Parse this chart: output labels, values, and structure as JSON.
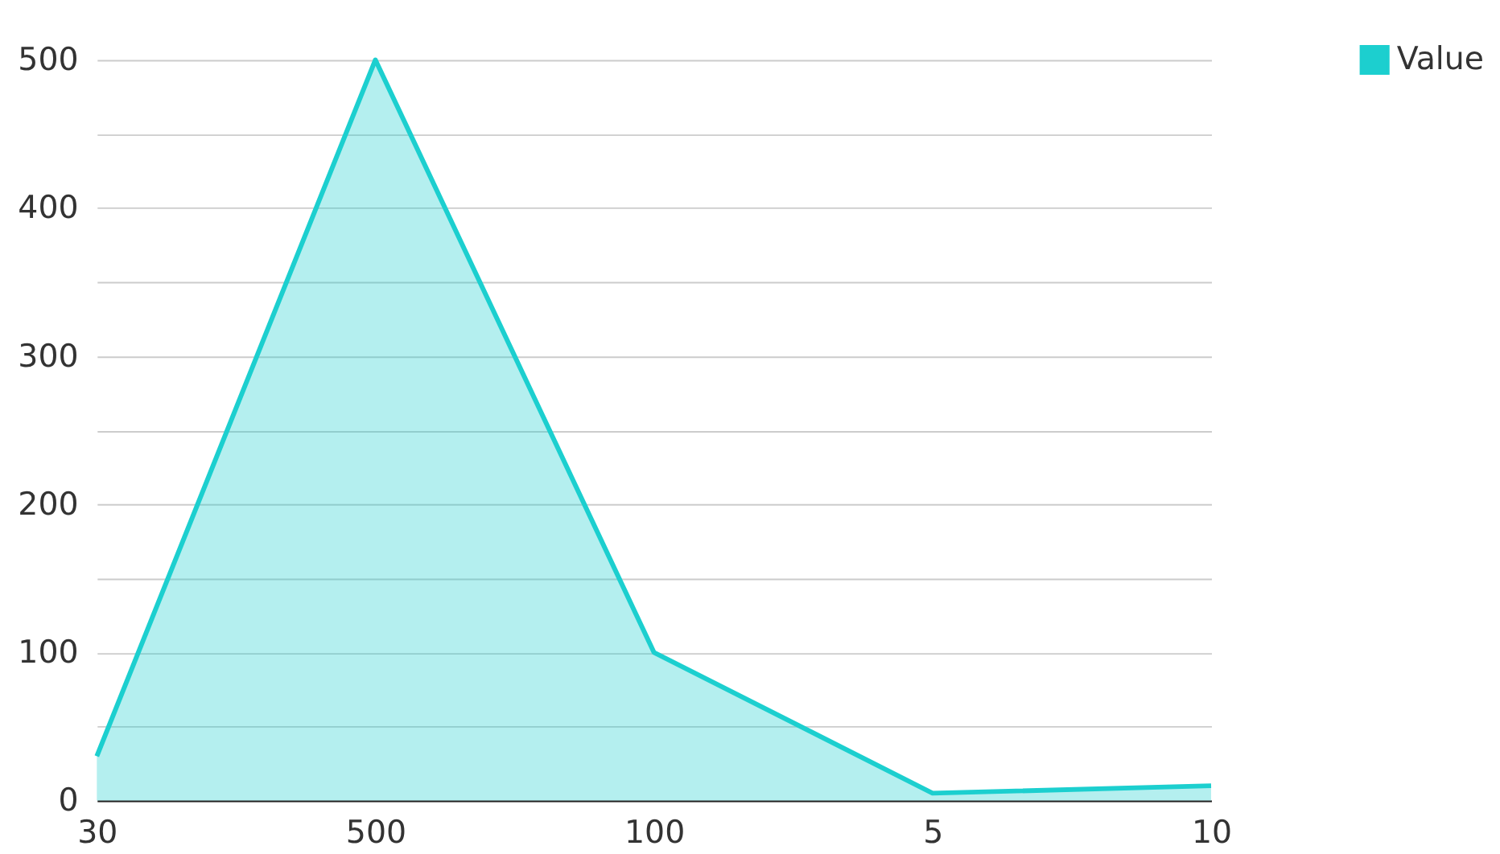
{
  "chart_data": {
    "type": "area",
    "categories": [
      "30",
      "500",
      "100",
      "5",
      "10"
    ],
    "series": [
      {
        "name": "Value",
        "color": "#1ccfcf",
        "values": [
          30,
          500,
          100,
          5,
          10
        ]
      }
    ],
    "ylim": [
      0,
      500
    ],
    "yticks": [
      0,
      {
        "value": 50,
        "label": null
      },
      100,
      {
        "value": 150,
        "label": null
      },
      200,
      {
        "value": 250,
        "label": null
      },
      300,
      {
        "value": 350,
        "label": null
      },
      400,
      {
        "value": 450,
        "label": null
      },
      500
    ],
    "grid": "y",
    "legend": "top right",
    "marker": "none",
    "line_style": "solid"
  }
}
